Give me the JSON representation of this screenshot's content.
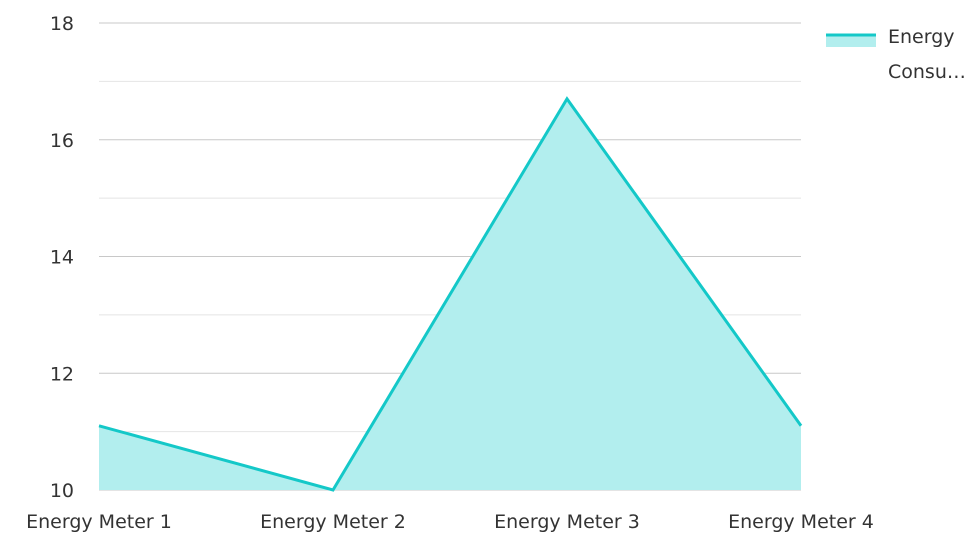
{
  "chart_data": {
    "type": "area",
    "categories": [
      "Energy Meter 1",
      "Energy Meter 2",
      "Energy Meter 3",
      "Energy Meter 4"
    ],
    "series": [
      {
        "name": "Energy Consu…",
        "values": [
          11.1,
          10.0,
          16.7,
          11.1
        ]
      }
    ],
    "title": "",
    "xlabel": "",
    "ylabel": "",
    "ylim": [
      10,
      18
    ],
    "yticks": [
      10,
      12,
      14,
      16,
      18
    ],
    "y_minor_step": 1,
    "grid": true,
    "legend": "top-right",
    "colors": {
      "line": "#14c8c8",
      "fill": "#b2eeee",
      "grid_major": "#c8c8c8",
      "grid_minor": "#e4e4e4",
      "text": "#333333"
    }
  },
  "legend": {
    "line1": "Energy",
    "line2": "Consu…"
  }
}
